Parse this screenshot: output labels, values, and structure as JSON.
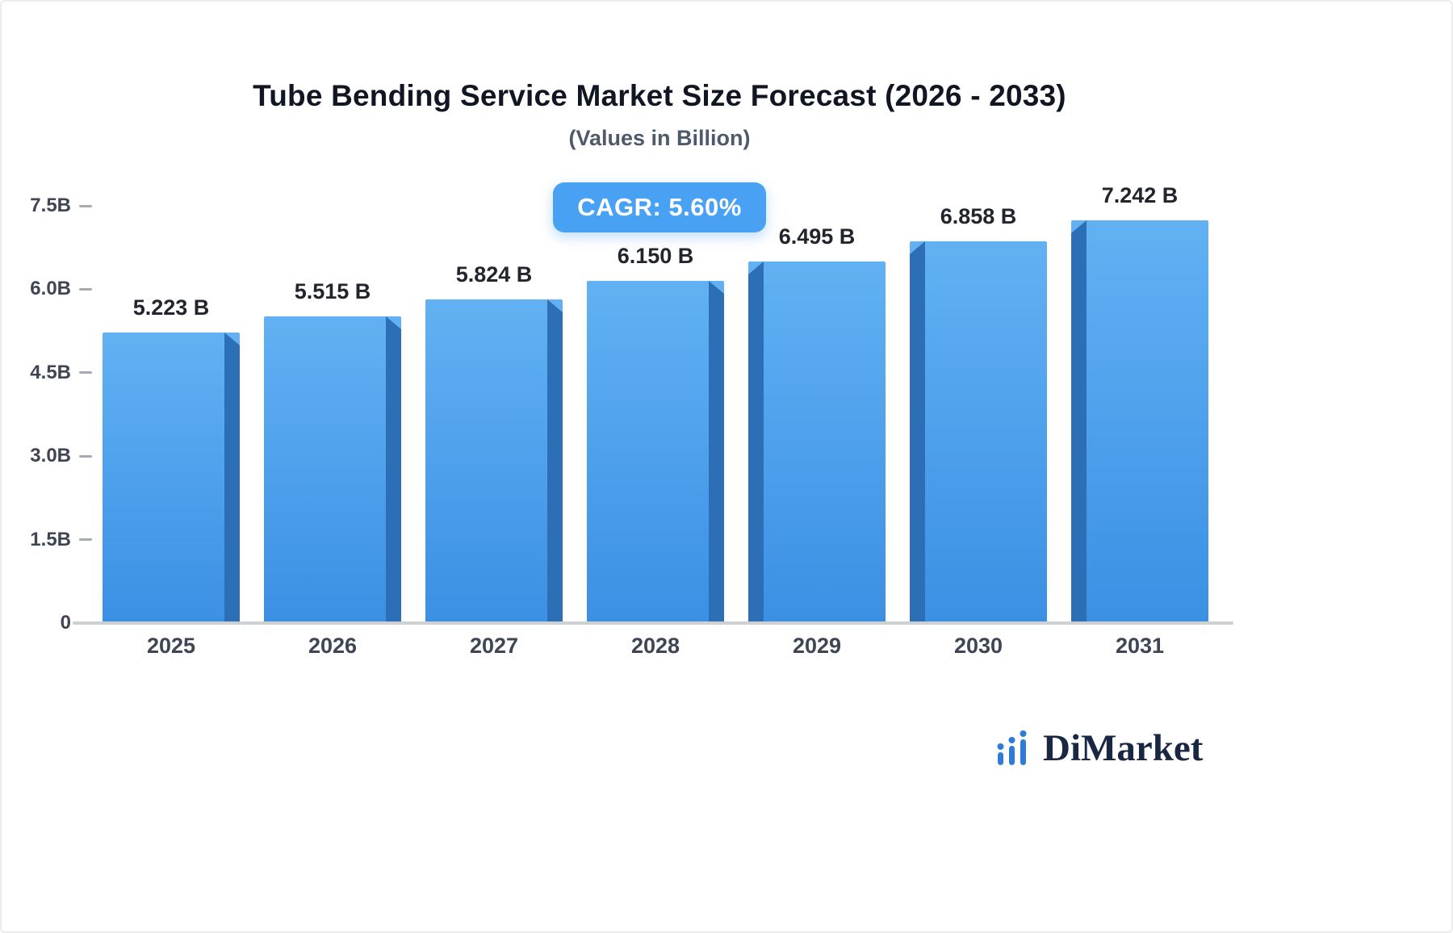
{
  "header": {
    "title": "Tube Bending Service Market Size Forecast (2026 - 2033)",
    "subtitle": "(Values in Billion)"
  },
  "badge": {
    "label": "CAGR: 5.60%",
    "background": "#49a1f4"
  },
  "chart_data": {
    "type": "bar",
    "title": "Tube Bending Service Market Size Forecast (2026 - 2033)",
    "subtitle": "(Values in Billion)",
    "categories": [
      "2025",
      "2026",
      "2027",
      "2028",
      "2029",
      "2030",
      "2031"
    ],
    "values": [
      5.223,
      5.515,
      5.824,
      6.15,
      6.495,
      6.858,
      7.242
    ],
    "labels": [
      "5.223 B",
      "5.515 B",
      "5.824 B",
      "6.150 B",
      "6.495 B",
      "6.858 B",
      "7.242 B"
    ],
    "xlabel": "",
    "ylabel": "",
    "ylim": [
      0,
      7.5
    ],
    "yticks": [
      "0",
      "1.5B",
      "3.0B",
      "4.5B",
      "6.0B",
      "7.5B"
    ],
    "grid": false,
    "legend": false,
    "colors": {
      "bar_top": "#61b1f3",
      "bar_bottom": "#3b90e4",
      "bar_side": "#2d6fb6",
      "axis_line": "#cdd0d4"
    }
  },
  "logo": {
    "text": "DiMarket",
    "icon": "bar-chart-dots-icon",
    "icon_color": "#2e7cd8"
  }
}
